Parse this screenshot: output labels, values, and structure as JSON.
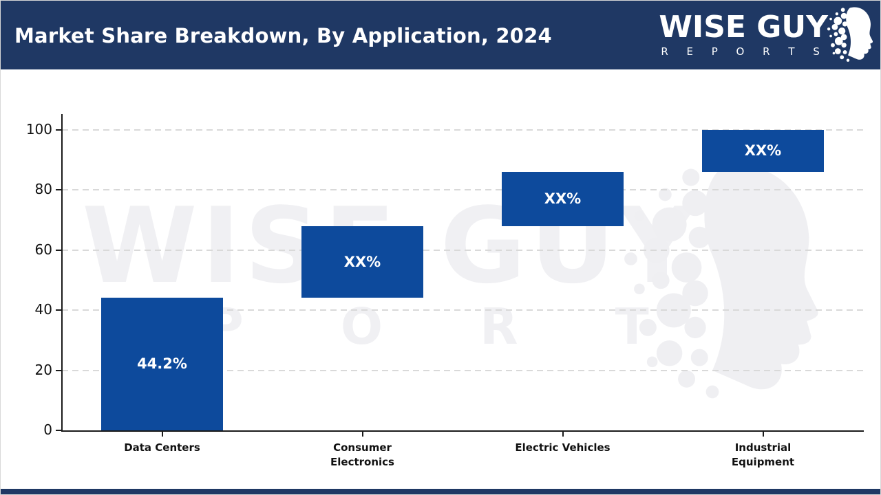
{
  "header": {
    "title": "Market Share Breakdown, By Application, 2024",
    "logo": {
      "line1": "WISE GUY",
      "line2": "R E P O R T S"
    }
  },
  "watermark": {
    "line1": "WISE GUY",
    "line2": "P O R T S"
  },
  "colors": {
    "header_bg": "#1f3864",
    "footer_bg": "#1f3864",
    "bar_fill": "#0d4a9c",
    "bar_label": "#ffffff",
    "grid_line": "#d9d9d9",
    "axis_line": "#1a1a1a",
    "tick_label": "#111111",
    "watermark": "#f0f0f3"
  },
  "chart_data": {
    "type": "bar",
    "subtype": "waterfall",
    "title": "Market Share Breakdown, By Application, 2024",
    "categories": [
      "Data Centers",
      "Consumer\nElectronics",
      "Electric Vehicles",
      "Industrial\nEquipment"
    ],
    "segments": [
      {
        "category": "Data Centers",
        "start": 0,
        "end": 44.2,
        "value": 44.2,
        "label": "44.2%"
      },
      {
        "category": "Consumer Electronics",
        "start": 44.2,
        "end": 68,
        "value": 23.8,
        "label": "XX%"
      },
      {
        "category": "Electric Vehicles",
        "start": 68,
        "end": 86,
        "value": 18,
        "label": "XX%"
      },
      {
        "category": "Industrial Equipment",
        "start": 86,
        "end": 100,
        "value": 14,
        "label": "XX%"
      }
    ],
    "ylim": [
      0,
      100
    ],
    "yticks": [
      0,
      20,
      40,
      60,
      80,
      100
    ],
    "xlabel": "",
    "ylabel": "",
    "grid": "dashed-horizontal",
    "legend": "none"
  }
}
